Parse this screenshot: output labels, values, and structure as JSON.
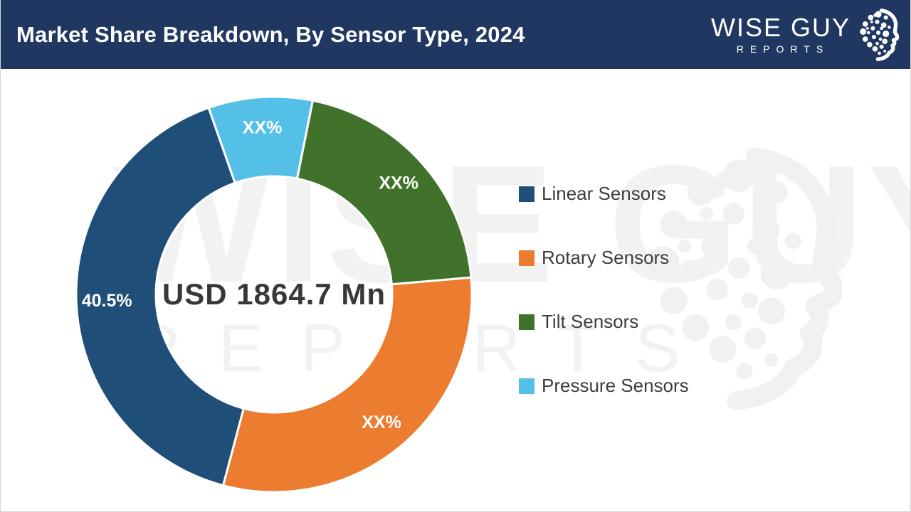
{
  "header": {
    "title": "Market Share Breakdown, By Sensor Type, 2024",
    "bg_color": "#1F3761",
    "logo": {
      "line1": "WISE GUY",
      "line2": "REPORTS"
    }
  },
  "watermark": {
    "line1": "WISE GUY",
    "line2": "REPORTS"
  },
  "chart_data": {
    "type": "donut",
    "title": "Market Share Breakdown, By Sensor Type, 2024",
    "center_label": "USD 1864.7 Mn",
    "start_angle_deg": -19.3,
    "legend_position": "right",
    "slices": [
      {
        "name": "Pressure Sensors",
        "label": "XX%",
        "value_pct": 8.5,
        "color": "#55C0E7"
      },
      {
        "name": "Tilt Sensors",
        "label": "XX%",
        "value_pct": 20.5,
        "color": "#40722B"
      },
      {
        "name": "Rotary Sensors",
        "label": "XX%",
        "value_pct": 30.5,
        "color": "#EC7C30"
      },
      {
        "name": "Linear Sensors",
        "label": "40.5%",
        "value_pct": 40.5,
        "color": "#1F4E78"
      }
    ]
  },
  "legend": {
    "items": [
      {
        "label": "Linear Sensors",
        "color": "#1F4E78"
      },
      {
        "label": "Rotary Sensors",
        "color": "#EC7C30"
      },
      {
        "label": "Tilt Sensors",
        "color": "#40722B"
      },
      {
        "label": "Pressure Sensors",
        "color": "#55C0E7"
      }
    ]
  }
}
